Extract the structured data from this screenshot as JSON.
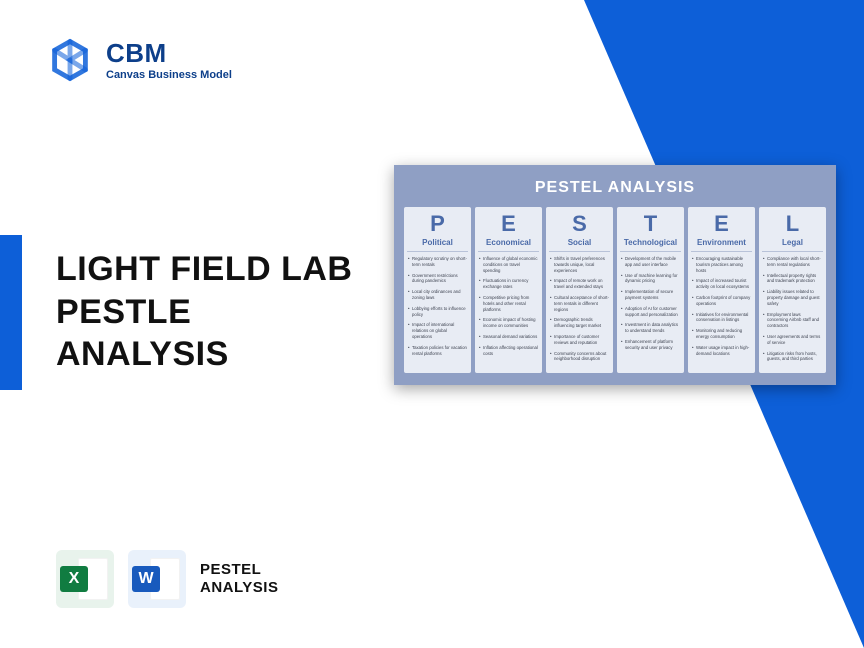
{
  "logo": {
    "brand": "CBM",
    "tagline": "Canvas Business Model",
    "icon_color": "#0d5fd8"
  },
  "accent_color": "#0d5fd8",
  "headline": "LIGHT FIELD LAB\nPESTLE\nANALYSIS",
  "bottom": {
    "excel_letter": "X",
    "excel_color": "#107c41",
    "word_letter": "W",
    "word_color": "#185abd",
    "label": "PESTEL\nANALYSIS"
  },
  "pestel": {
    "title": "PESTEL ANALYSIS",
    "card_bg": "#8f9fc4",
    "col_bg": "#e8ecf4",
    "header_color": "#4a6aa8",
    "columns": [
      {
        "letter": "P",
        "category": "Political",
        "items": [
          "Regulatory scrutiny on short-term rentals",
          "Government restrictions during pandemics",
          "Local city ordinances and zoning laws",
          "Lobbying efforts to influence policy",
          "Impact of international relations on global operations",
          "Taxation policies for vacation rental platforms"
        ]
      },
      {
        "letter": "E",
        "category": "Economical",
        "items": [
          "Influence of global economic conditions on travel spending",
          "Fluctuations in currency exchange rates",
          "Competitive pricing from hotels and other rental platforms",
          "Economic impact of hosting income on communities",
          "Seasonal demand variations",
          "Inflation affecting operational costs"
        ]
      },
      {
        "letter": "S",
        "category": "Social",
        "items": [
          "Shifts in travel preferences towards unique, local experiences",
          "Impact of remote work on travel and extended stays",
          "Cultural acceptance of short-term rentals in different regions",
          "Demographic trends influencing target market",
          "Importance of customer reviews and reputation",
          "Community concerns about neighborhood disruption"
        ]
      },
      {
        "letter": "T",
        "category": "Technological",
        "items": [
          "Development of the mobile app and user interface",
          "Use of machine learning for dynamic pricing",
          "Implementation of secure payment systems",
          "Adoption of AI for customer support and personalization",
          "Investment in data analytics to understand trends",
          "Enhancement of platform security and user privacy"
        ]
      },
      {
        "letter": "E",
        "category": "Environment",
        "items": [
          "Encouraging sustainable tourism practices among hosts",
          "Impact of increased tourist activity on local ecosystems",
          "Carbon footprint of company operations",
          "Initiatives for environmental conservation in listings",
          "Monitoring and reducing energy consumption",
          "Water usage impact in high-demand locations"
        ]
      },
      {
        "letter": "L",
        "category": "Legal",
        "items": [
          "Compliance with local short-term rental regulations",
          "Intellectual property rights and trademark protection",
          "Liability issues related to property damage and guest safety",
          "Employment laws concerning Airbnb staff and contractors",
          "User agreements and terms of service",
          "Litigation risks from hosts, guests, and third parties"
        ]
      }
    ]
  }
}
